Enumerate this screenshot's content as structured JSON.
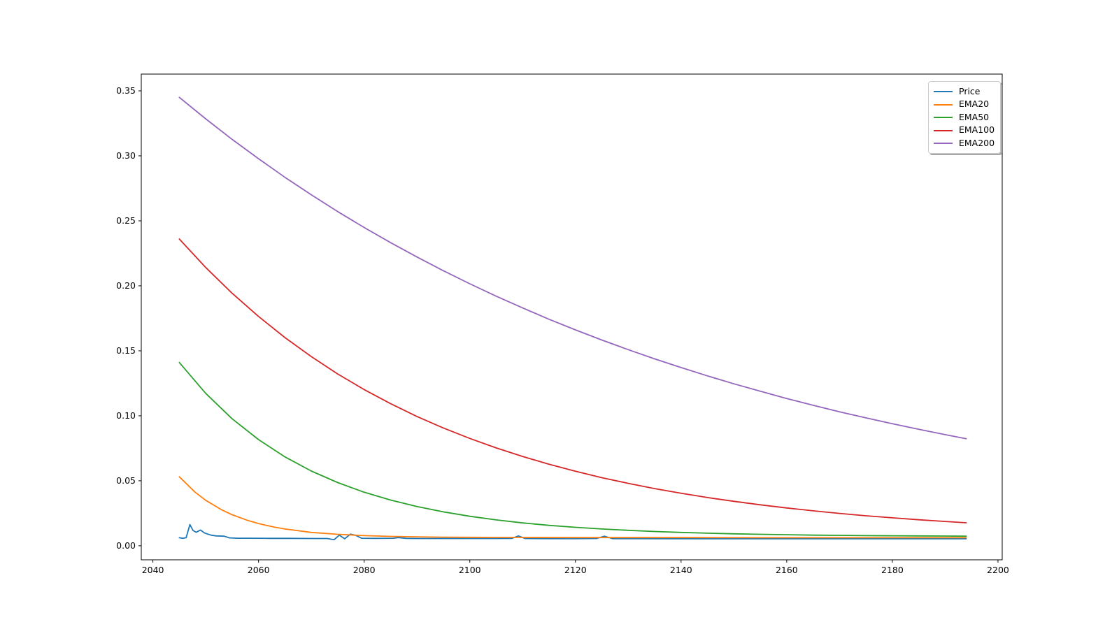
{
  "chart_data": {
    "type": "line",
    "title": "",
    "xlabel": "",
    "ylabel": "",
    "grid": false,
    "background": "#ffffff",
    "axis_color": "#000000",
    "xlim": [
      2037.8,
      2200.8
    ],
    "ylim": [
      -0.0108,
      0.3629
    ],
    "x_ticks": [
      {
        "label": "2040",
        "value": 2040
      },
      {
        "label": "2060",
        "value": 2060
      },
      {
        "label": "2080",
        "value": 2080
      },
      {
        "label": "2100",
        "value": 2100
      },
      {
        "label": "2120",
        "value": 2120
      },
      {
        "label": "2140",
        "value": 2140
      },
      {
        "label": "2160",
        "value": 2160
      },
      {
        "label": "2180",
        "value": 2180
      },
      {
        "label": "2200",
        "value": 2200
      }
    ],
    "y_ticks": [
      {
        "label": "0.00",
        "value": 0.0
      },
      {
        "label": "0.05",
        "value": 0.05
      },
      {
        "label": "0.10",
        "value": 0.1
      },
      {
        "label": "0.15",
        "value": 0.15
      },
      {
        "label": "0.20",
        "value": 0.2
      },
      {
        "label": "0.25",
        "value": 0.25
      },
      {
        "label": "0.30",
        "value": 0.3
      },
      {
        "label": "0.35",
        "value": 0.35
      }
    ],
    "legend": {
      "position": "upper right",
      "entries": [
        "Price",
        "EMA20",
        "EMA50",
        "EMA100",
        "EMA200"
      ]
    },
    "series": [
      {
        "name": "Price",
        "color": "#1f77b4",
        "points": [
          [
            2045,
            0.0062
          ],
          [
            2045.7,
            0.0057
          ],
          [
            2046.3,
            0.0063
          ],
          [
            2047,
            0.0163
          ],
          [
            2047.6,
            0.0118
          ],
          [
            2048.2,
            0.0104
          ],
          [
            2049,
            0.0121
          ],
          [
            2049.8,
            0.0098
          ],
          [
            2051,
            0.0082
          ],
          [
            2052,
            0.0076
          ],
          [
            2053.5,
            0.0074
          ],
          [
            2054.5,
            0.0061
          ],
          [
            2056,
            0.0058
          ],
          [
            2058,
            0.0058
          ],
          [
            2062,
            0.0057
          ],
          [
            2066,
            0.0057
          ],
          [
            2070,
            0.0056
          ],
          [
            2073,
            0.0056
          ],
          [
            2074.3,
            0.0047
          ],
          [
            2075.3,
            0.0082
          ],
          [
            2076.3,
            0.0054
          ],
          [
            2077.4,
            0.009
          ],
          [
            2078.4,
            0.008
          ],
          [
            2079.5,
            0.0058
          ],
          [
            2082,
            0.0057
          ],
          [
            2085.5,
            0.0058
          ],
          [
            2086.5,
            0.0063
          ],
          [
            2088,
            0.0057
          ],
          [
            2090,
            0.0056
          ],
          [
            2095,
            0.0056
          ],
          [
            2100,
            0.0056
          ],
          [
            2105,
            0.0056
          ],
          [
            2108,
            0.0057
          ],
          [
            2109.2,
            0.0076
          ],
          [
            2110.5,
            0.0056
          ],
          [
            2115,
            0.0055
          ],
          [
            2120,
            0.0055
          ],
          [
            2124,
            0.0056
          ],
          [
            2125.5,
            0.0074
          ],
          [
            2127,
            0.0055
          ],
          [
            2132,
            0.0055
          ],
          [
            2138,
            0.0054
          ],
          [
            2145,
            0.0054
          ],
          [
            2152,
            0.0054
          ],
          [
            2160,
            0.0054
          ],
          [
            2170,
            0.0054
          ],
          [
            2180,
            0.0054
          ],
          [
            2188,
            0.0054
          ],
          [
            2194,
            0.0054
          ]
        ]
      },
      {
        "name": "EMA20",
        "color": "#ff7f0e",
        "points": [
          [
            2045,
            0.0531
          ],
          [
            2048,
            0.0412
          ],
          [
            2050,
            0.035
          ],
          [
            2053,
            0.0277
          ],
          [
            2055,
            0.0239
          ],
          [
            2058,
            0.0194
          ],
          [
            2060,
            0.0171
          ],
          [
            2063,
            0.0143
          ],
          [
            2065,
            0.0129
          ],
          [
            2070,
            0.0103
          ],
          [
            2075,
            0.0088
          ],
          [
            2080,
            0.0078
          ],
          [
            2085,
            0.0072
          ],
          [
            2090,
            0.0069
          ],
          [
            2095,
            0.0066
          ],
          [
            2100,
            0.0065
          ],
          [
            2105,
            0.0064
          ],
          [
            2110,
            0.0064
          ],
          [
            2120,
            0.0063
          ],
          [
            2130,
            0.0063
          ],
          [
            2140,
            0.0063
          ],
          [
            2155,
            0.0062
          ],
          [
            2170,
            0.0062
          ],
          [
            2185,
            0.0062
          ],
          [
            2194,
            0.0062
          ]
        ]
      },
      {
        "name": "EMA50",
        "color": "#2ca02c",
        "points": [
          [
            2045,
            0.141
          ],
          [
            2050,
            0.1173
          ],
          [
            2055,
            0.0977
          ],
          [
            2060,
            0.0817
          ],
          [
            2065,
            0.0684
          ],
          [
            2070,
            0.0575
          ],
          [
            2075,
            0.0486
          ],
          [
            2080,
            0.0412
          ],
          [
            2085,
            0.0352
          ],
          [
            2090,
            0.0302
          ],
          [
            2095,
            0.0261
          ],
          [
            2100,
            0.0227
          ],
          [
            2105,
            0.0199
          ],
          [
            2110,
            0.0176
          ],
          [
            2115,
            0.0157
          ],
          [
            2120,
            0.0142
          ],
          [
            2125,
            0.0129
          ],
          [
            2130,
            0.0119
          ],
          [
            2135,
            0.011
          ],
          [
            2140,
            0.0103
          ],
          [
            2145,
            0.0097
          ],
          [
            2150,
            0.0092
          ],
          [
            2155,
            0.0088
          ],
          [
            2160,
            0.0085
          ],
          [
            2165,
            0.0082
          ],
          [
            2170,
            0.008
          ],
          [
            2175,
            0.0078
          ],
          [
            2180,
            0.0077
          ],
          [
            2185,
            0.0076
          ],
          [
            2190,
            0.0075
          ],
          [
            2194,
            0.0074
          ]
        ]
      },
      {
        "name": "EMA100",
        "color": "#d62728",
        "points": [
          [
            2045,
            0.236
          ],
          [
            2050,
            0.2141
          ],
          [
            2055,
            0.1943
          ],
          [
            2060,
            0.1764
          ],
          [
            2065,
            0.1602
          ],
          [
            2070,
            0.1455
          ],
          [
            2075,
            0.1322
          ],
          [
            2080,
            0.1202
          ],
          [
            2085,
            0.1093
          ],
          [
            2090,
            0.0995
          ],
          [
            2095,
            0.0906
          ],
          [
            2100,
            0.0826
          ],
          [
            2105,
            0.0753
          ],
          [
            2110,
            0.0687
          ],
          [
            2115,
            0.0627
          ],
          [
            2120,
            0.0573
          ],
          [
            2125,
            0.0524
          ],
          [
            2130,
            0.048
          ],
          [
            2135,
            0.044
          ],
          [
            2140,
            0.0404
          ],
          [
            2145,
            0.0371
          ],
          [
            2150,
            0.0342
          ],
          [
            2155,
            0.0315
          ],
          [
            2160,
            0.0291
          ],
          [
            2165,
            0.0269
          ],
          [
            2170,
            0.0249
          ],
          [
            2175,
            0.0231
          ],
          [
            2180,
            0.0215
          ],
          [
            2185,
            0.02
          ],
          [
            2190,
            0.0187
          ],
          [
            2194,
            0.0177
          ]
        ]
      },
      {
        "name": "EMA200",
        "color": "#9467bd",
        "points": [
          [
            2045,
            0.345
          ],
          [
            2050,
            0.3285
          ],
          [
            2055,
            0.3127
          ],
          [
            2060,
            0.2978
          ],
          [
            2065,
            0.2835
          ],
          [
            2070,
            0.27
          ],
          [
            2075,
            0.2571
          ],
          [
            2080,
            0.2449
          ],
          [
            2085,
            0.2332
          ],
          [
            2090,
            0.2222
          ],
          [
            2095,
            0.2116
          ],
          [
            2100,
            0.2016
          ],
          [
            2105,
            0.192
          ],
          [
            2110,
            0.183
          ],
          [
            2115,
            0.1743
          ],
          [
            2120,
            0.1661
          ],
          [
            2125,
            0.1583
          ],
          [
            2130,
            0.1509
          ],
          [
            2135,
            0.1438
          ],
          [
            2140,
            0.1371
          ],
          [
            2145,
            0.1307
          ],
          [
            2150,
            0.1246
          ],
          [
            2155,
            0.1189
          ],
          [
            2160,
            0.1133
          ],
          [
            2165,
            0.1081
          ],
          [
            2170,
            0.1031
          ],
          [
            2175,
            0.0984
          ],
          [
            2180,
            0.0939
          ],
          [
            2185,
            0.0896
          ],
          [
            2190,
            0.0855
          ],
          [
            2194,
            0.0824
          ]
        ]
      }
    ]
  }
}
